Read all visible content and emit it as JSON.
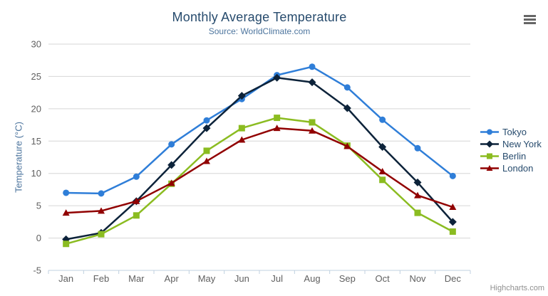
{
  "chart_data": {
    "type": "line",
    "title": "Monthly Average Temperature",
    "subtitle": "Source: WorldClimate.com",
    "categories": [
      "Jan",
      "Feb",
      "Mar",
      "Apr",
      "May",
      "Jun",
      "Jul",
      "Aug",
      "Sep",
      "Oct",
      "Nov",
      "Dec"
    ],
    "series": [
      {
        "name": "Tokyo",
        "color": "#2f7ed8",
        "marker": "circle",
        "values": [
          7.0,
          6.9,
          9.5,
          14.5,
          18.2,
          21.5,
          25.2,
          26.5,
          23.3,
          18.3,
          13.9,
          9.6
        ]
      },
      {
        "name": "New York",
        "color": "#0d233a",
        "marker": "diamond",
        "values": [
          -0.2,
          0.8,
          5.7,
          11.3,
          17.0,
          22.0,
          24.8,
          24.1,
          20.1,
          14.1,
          8.6,
          2.5
        ]
      },
      {
        "name": "Berlin",
        "color": "#8bbc21",
        "marker": "square",
        "values": [
          -0.9,
          0.6,
          3.5,
          8.4,
          13.5,
          17.0,
          18.6,
          17.9,
          14.3,
          9.0,
          3.9,
          1.0
        ]
      },
      {
        "name": "London",
        "color": "#910000",
        "marker": "triangle",
        "values": [
          3.9,
          4.2,
          5.7,
          8.5,
          11.9,
          15.2,
          17.0,
          16.6,
          14.2,
          10.3,
          6.6,
          4.8
        ]
      }
    ],
    "xlabel": "",
    "ylabel": "Temperature (°C)",
    "ylim": [
      -5,
      30
    ],
    "ytick_step": 5,
    "grid": true,
    "legend_position": "right"
  },
  "credits": "Highcharts.com",
  "icons": {
    "export_menu": "hamburger-menu"
  },
  "colors": {
    "background": "#ffffff",
    "title_text": "#274b6d",
    "subtitle_text": "#4d759e",
    "axis_title_text": "#4d759e",
    "tick_label_text": "#606060",
    "grid_line": "#d6d6d6",
    "axis_line": "#c0d0e0",
    "legend_text": "#274b6d",
    "credits_text": "#909090",
    "menu_icon": "#666666"
  }
}
